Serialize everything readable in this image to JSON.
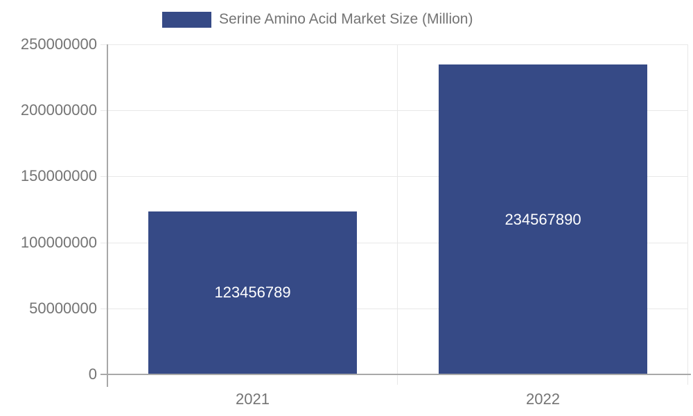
{
  "legend": {
    "label": "Serine Amino Acid Market Size (Million)"
  },
  "chart_data": {
    "type": "bar",
    "categories": [
      "2021",
      "2022"
    ],
    "series": [
      {
        "name": "Serine Amino Acid Market Size (Million)",
        "values": [
          123456789,
          234567890
        ]
      }
    ],
    "bar_labels": [
      "123456789",
      "234567890"
    ],
    "title": "",
    "xlabel": "",
    "ylabel": "",
    "ylim": [
      0,
      250000000
    ],
    "yticks": [
      0,
      50000000,
      100000000,
      150000000,
      200000000,
      250000000
    ],
    "ytick_labels": [
      "0",
      "50000000",
      "100000000",
      "150000000",
      "200000000",
      "250000000"
    ],
    "grid": "on",
    "legend_position": "top",
    "colors": {
      "bar": "#364A86",
      "bar_label_text": "#ffffff",
      "axis_text": "#747474",
      "axis_line": "#a8a8a8",
      "gridline": "#e8e8e8",
      "background": "#ffffff"
    }
  }
}
